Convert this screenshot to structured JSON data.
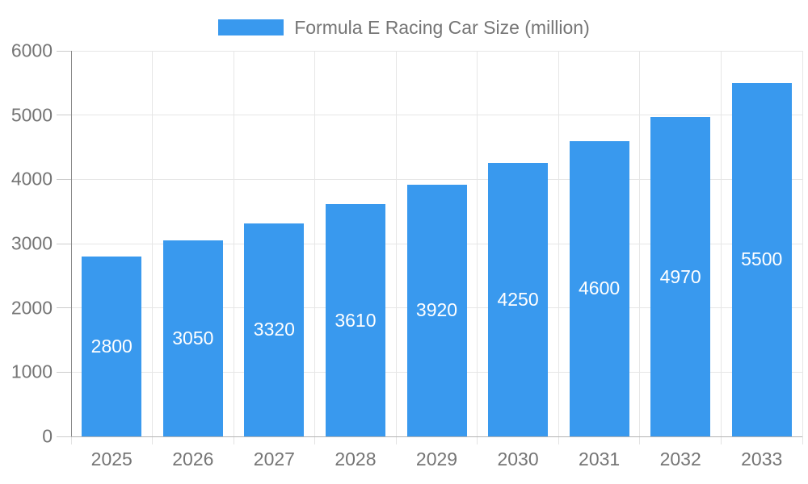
{
  "chart_data": {
    "type": "bar",
    "title": "Formula E Racing Car Size (million)",
    "categories": [
      "2025",
      "2026",
      "2027",
      "2028",
      "2029",
      "2030",
      "2031",
      "2032",
      "2033"
    ],
    "values": [
      2800,
      3050,
      3320,
      3610,
      3920,
      4250,
      4600,
      4970,
      5500
    ],
    "value_labels": [
      "2800",
      "3050",
      "3320",
      "3610",
      "3920",
      "4250",
      "4600",
      "4970",
      "5500"
    ],
    "yticks": [
      0,
      1000,
      2000,
      3000,
      4000,
      5000,
      6000
    ],
    "ytick_labels": [
      "0",
      "1000",
      "2000",
      "3000",
      "4000",
      "5000",
      "6000"
    ],
    "ylim": [
      0,
      6000
    ],
    "xlabel": "",
    "ylabel": "",
    "grid": true,
    "legend_position": "top",
    "bar_color": "#3999EE",
    "bar_label_color": "#ffffff",
    "axis_text_color": "#757575"
  }
}
